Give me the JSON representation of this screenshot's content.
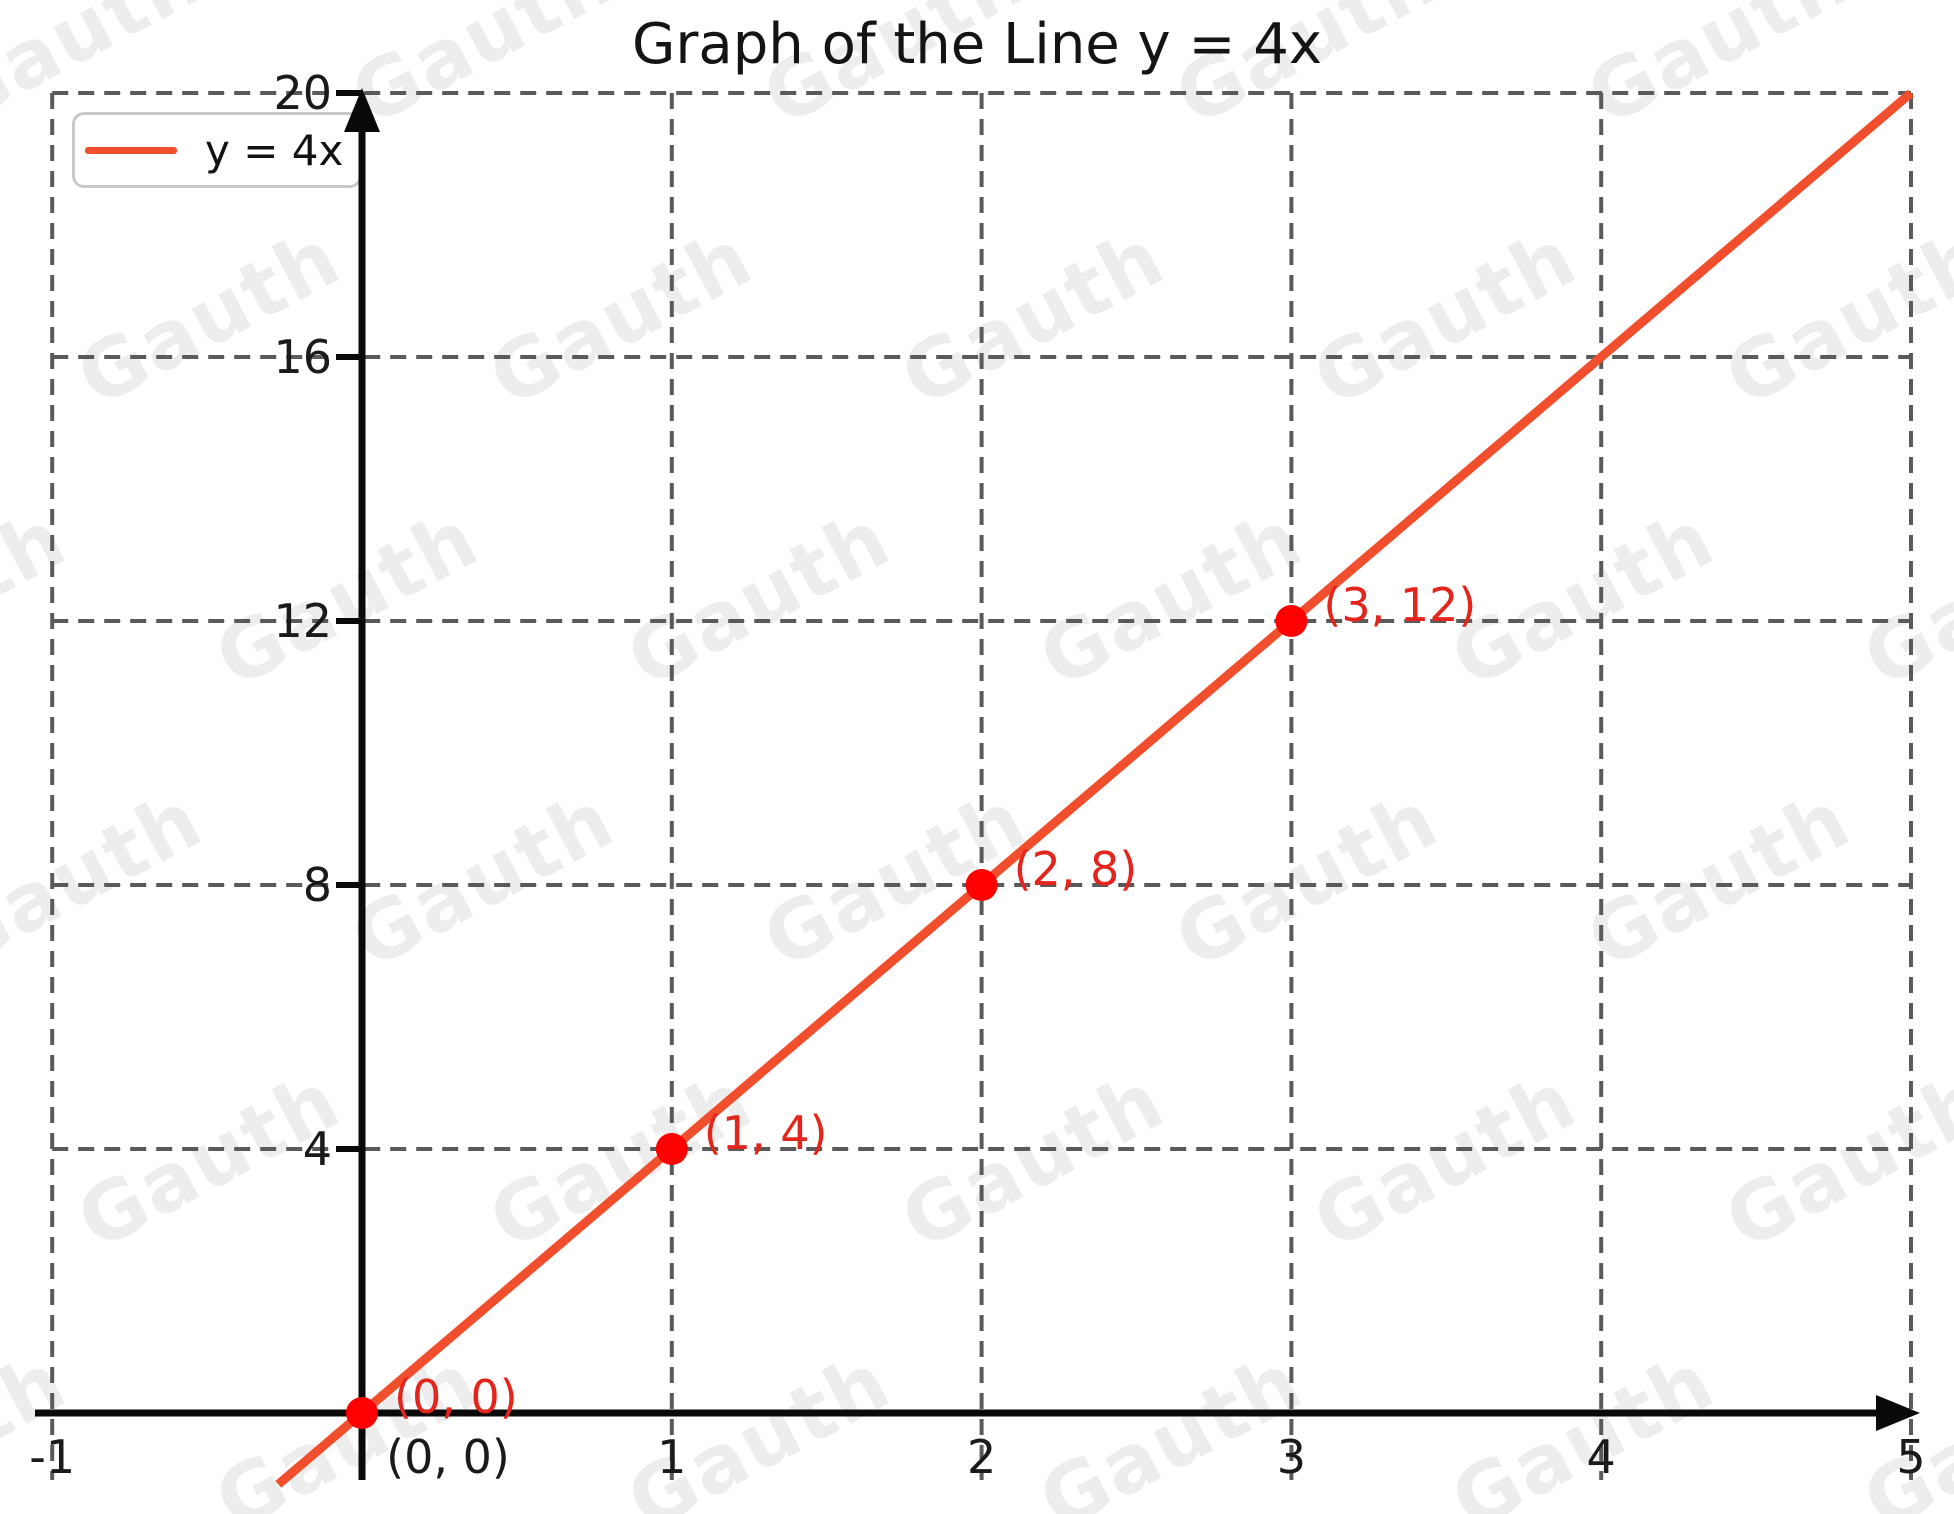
{
  "title": "Graph of the Line y = 4x",
  "legend": {
    "label": "y = 4x"
  },
  "watermark": {
    "text": "Gauth"
  },
  "colors": {
    "line": "#F04E2C",
    "point": "#FF0000",
    "point_label": "#E3251C",
    "grid": "#5A5A5A",
    "axis": "#0A0A0A",
    "tick_label": "#1A1A1A",
    "legend_border": "#C9C9C9",
    "watermark": "#EDEDED"
  },
  "chart_data": {
    "type": "line",
    "title": "Graph of the Line y = 4x",
    "equation": "y = 4x",
    "xlim": [
      -1,
      5
    ],
    "ylim": [
      0,
      20
    ],
    "grid": true,
    "grid_style": "dashed",
    "legend_position": "upper left",
    "x_ticks": [
      -1,
      1,
      2,
      3,
      4,
      5
    ],
    "x_tick_labels": [
      "-1",
      "1",
      "2",
      "3",
      "4",
      "5"
    ],
    "origin_tick_label": "(0, 0)",
    "y_ticks": [
      4,
      8,
      12,
      16,
      20
    ],
    "y_tick_labels": [
      "4",
      "8",
      "12",
      "16",
      "20"
    ],
    "series": [
      {
        "name": "y = 4x",
        "slope": 4,
        "intercept": 0,
        "segment_x": [
          -0.27,
          5
        ],
        "segment_y": [
          -1.08,
          20
        ]
      }
    ],
    "points": [
      {
        "x": 0,
        "y": 0,
        "label": "(0, 0)"
      },
      {
        "x": 1,
        "y": 4,
        "label": "(1, 4)"
      },
      {
        "x": 2,
        "y": 8,
        "label": "(2, 8)"
      },
      {
        "x": 3,
        "y": 12,
        "label": "(3, 12)"
      }
    ]
  }
}
